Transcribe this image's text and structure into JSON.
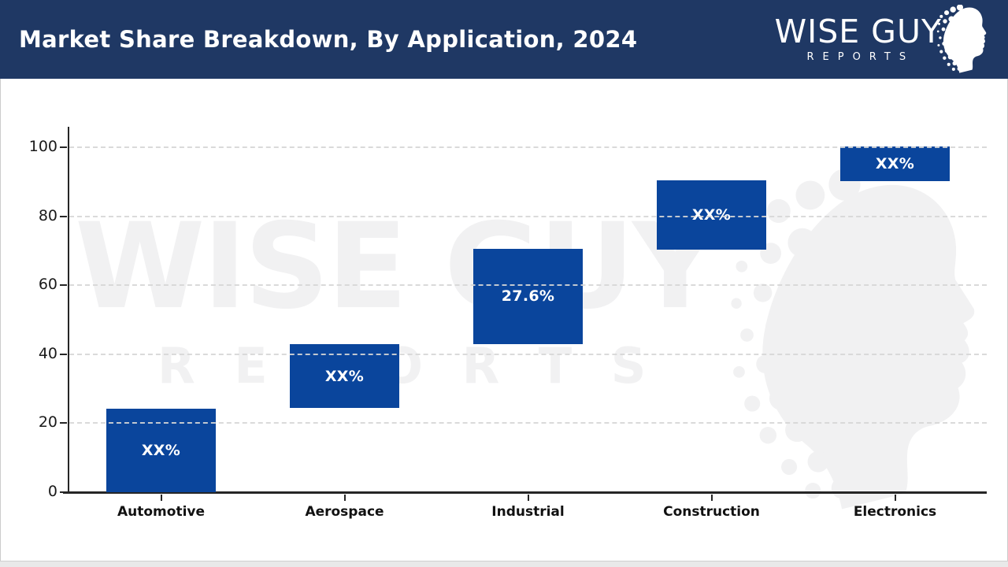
{
  "header": {
    "title": "Market Share Breakdown, By Application, 2024",
    "brand": {
      "line1": "WISE GUY",
      "line2": "REPORTS"
    }
  },
  "watermark": {
    "line1": "WISE GUY",
    "line2": "R E P O R T S"
  },
  "colors": {
    "header_bg": "#1f3864",
    "bar": "#0a459c",
    "axis": "#262626",
    "grid": "#d6d6d6",
    "tick_label": "#1a1a1a",
    "bar_label": "#ffffff",
    "watermark": "#f1f1f2"
  },
  "chart_data": {
    "type": "bar",
    "subtype": "waterfall",
    "title": "Market Share Breakdown, By Application, 2024",
    "categories": [
      "Automotive",
      "Aerospace",
      "Industrial",
      "Construction",
      "Electronics"
    ],
    "segments": [
      {
        "category": "Automotive",
        "start": 0,
        "end": 24.2,
        "label": "XX%"
      },
      {
        "category": "Aerospace",
        "start": 24.4,
        "end": 42.8,
        "label": "XX%"
      },
      {
        "category": "Industrial",
        "start": 43.0,
        "end": 70.6,
        "label": "27.6%"
      },
      {
        "category": "Construction",
        "start": 70.4,
        "end": 90.3,
        "label": "XX%"
      },
      {
        "category": "Electronics",
        "start": 90.2,
        "end": 100.2,
        "label": "XX%"
      }
    ],
    "xlabel": "",
    "ylabel": "",
    "yticks": [
      0,
      20,
      40,
      60,
      80,
      100
    ],
    "ylim": [
      0,
      105
    ],
    "grid": "horizontal-dashed",
    "legend": "none",
    "bar_width_fraction": 0.6
  }
}
